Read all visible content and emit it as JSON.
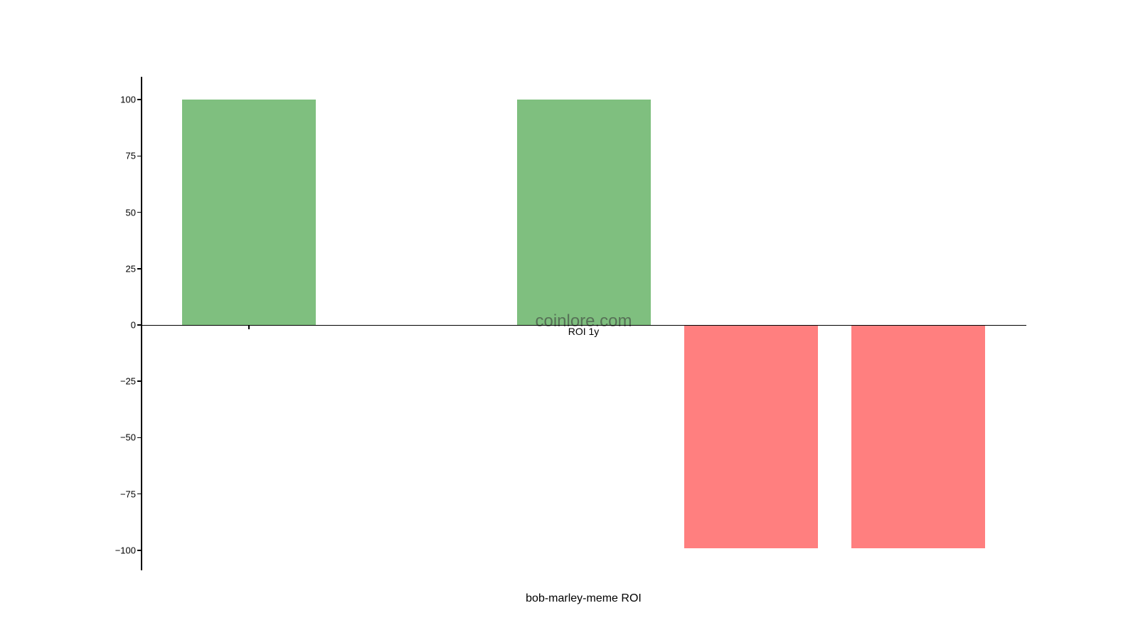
{
  "watermark": {
    "text": "coinlore.com",
    "color": "#8a8a8a"
  },
  "chart_data": {
    "type": "bar",
    "title": "bob-marley-meme ROI",
    "categories": [
      "",
      "",
      "ROI 1y",
      "",
      ""
    ],
    "values": [
      100,
      null,
      100,
      -99,
      -99
    ],
    "y_ticks": [
      100,
      75,
      50,
      25,
      0,
      -25,
      -50,
      -75,
      -100
    ],
    "ylim": [
      -110,
      110
    ],
    "x_tick_marks_at_slots": [
      0
    ],
    "x_tick_labels": [
      {
        "slot": 2,
        "text": "ROI 1y"
      }
    ],
    "colors": {
      "positive_bar": "#7fbf7f",
      "negative_bar": "#ff7f7f",
      "axis": "#000000",
      "text": "#000000"
    },
    "grid": false,
    "legend": "none",
    "annotations": [
      "coinlore.com"
    ]
  }
}
